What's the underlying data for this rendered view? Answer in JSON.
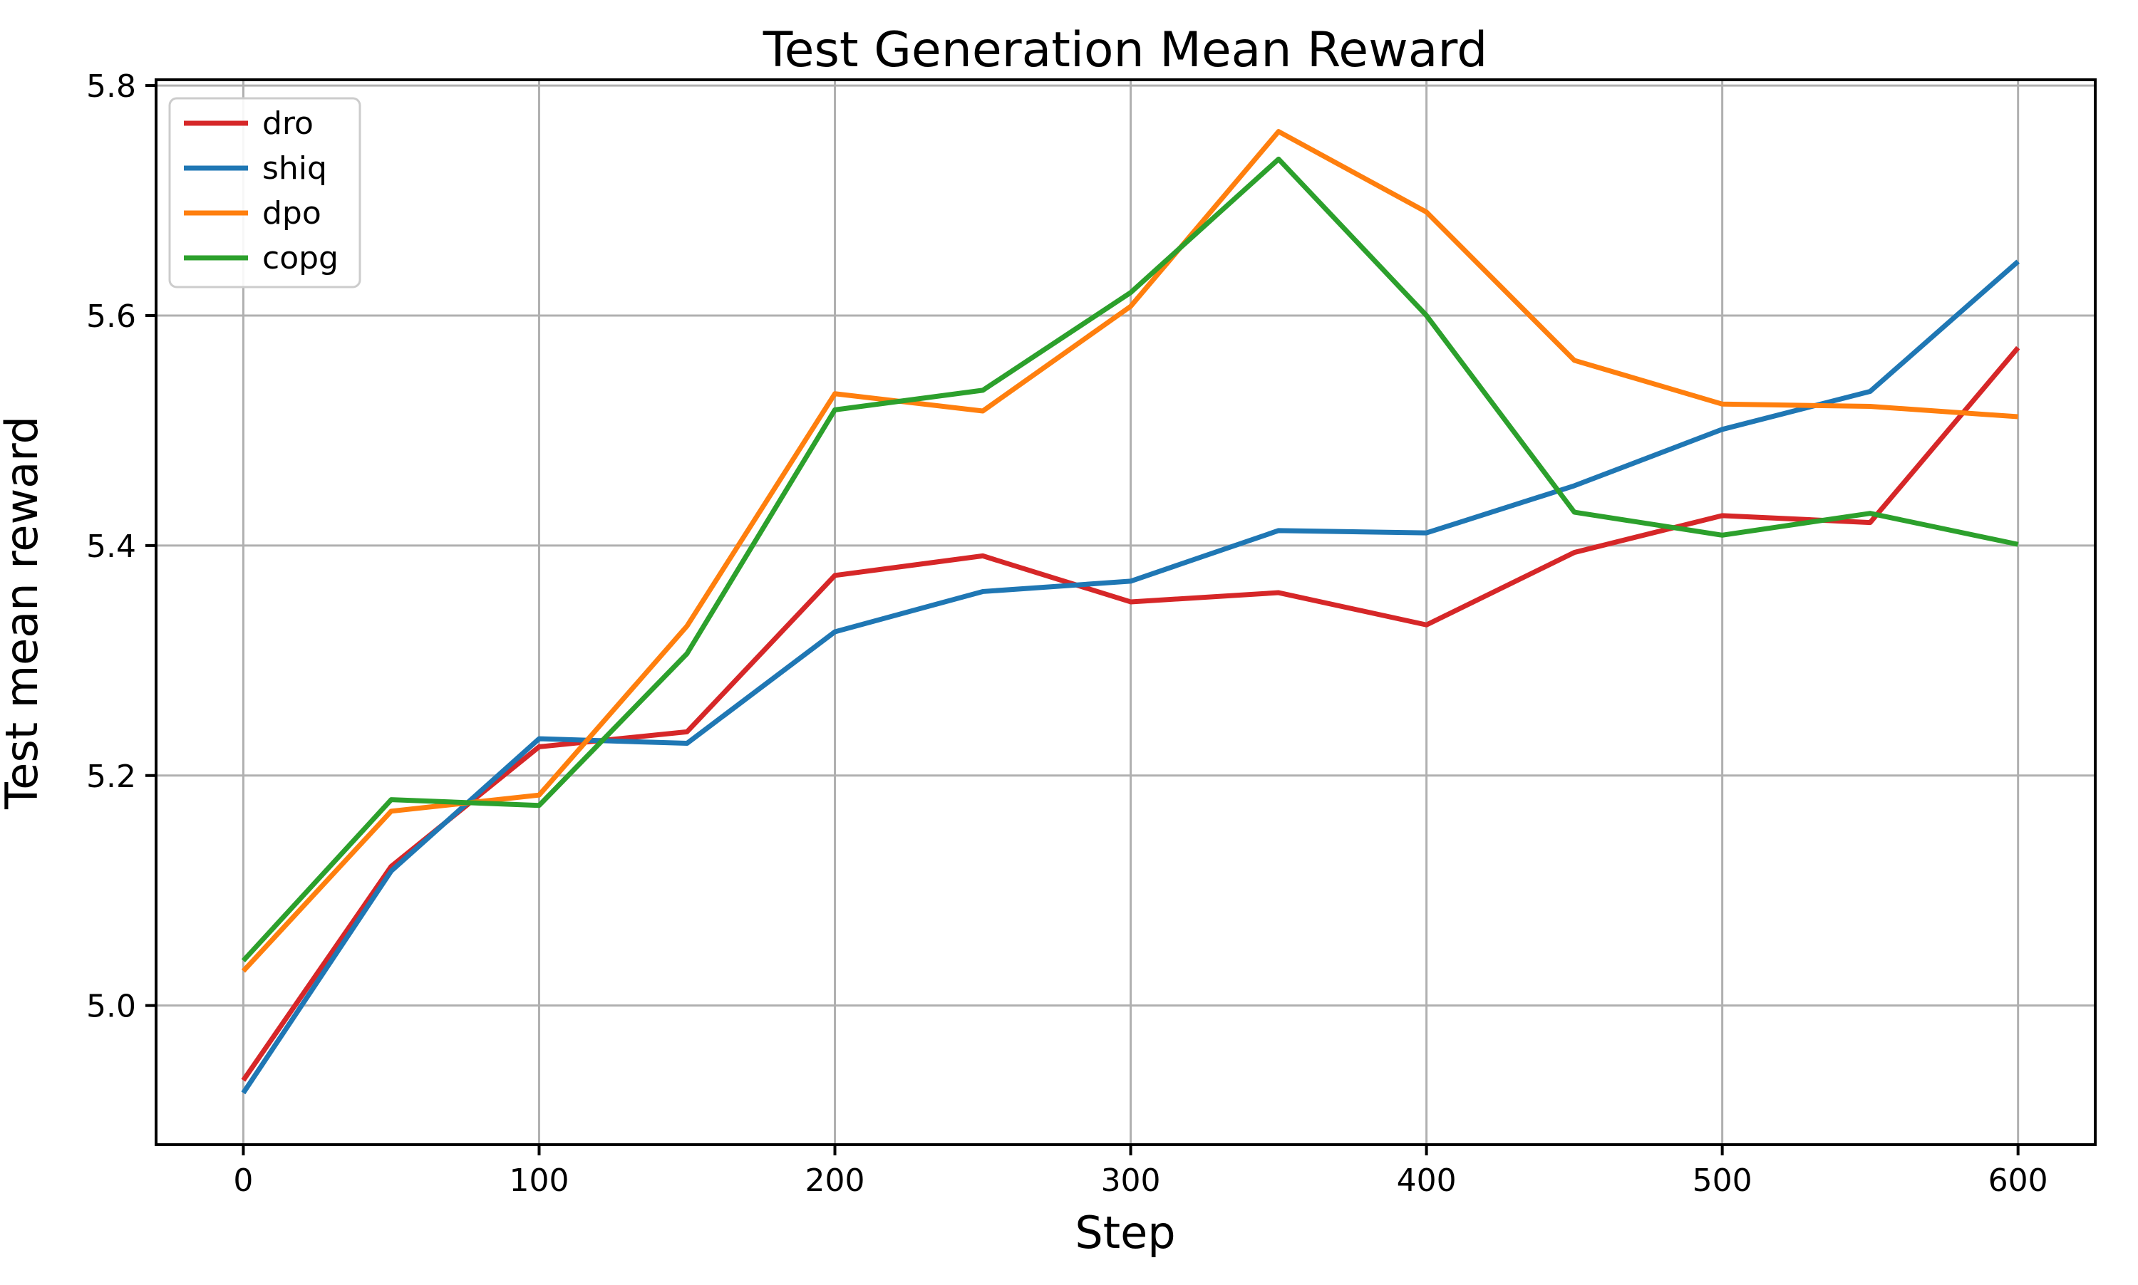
{
  "figure": {
    "background": "#ffffff",
    "plot_background": "#ffffff"
  },
  "chart_data": {
    "type": "line",
    "title": "Test Generation Mean Reward",
    "xlabel": "Step",
    "ylabel": "Test mean reward",
    "x": [
      0,
      50,
      100,
      150,
      200,
      250,
      300,
      350,
      400,
      450,
      500,
      550,
      600
    ],
    "series": [
      {
        "name": "dro",
        "color": "#d62728",
        "values": [
          4.935,
          5.121,
          5.225,
          5.238,
          5.374,
          5.391,
          5.351,
          5.359,
          5.331,
          5.394,
          5.426,
          5.42,
          5.572
        ]
      },
      {
        "name": "shiq",
        "color": "#1f77b4",
        "values": [
          4.924,
          5.117,
          5.232,
          5.228,
          5.325,
          5.36,
          5.369,
          5.413,
          5.411,
          5.452,
          5.501,
          5.534,
          5.647
        ]
      },
      {
        "name": "dpo",
        "color": "#ff7f0e",
        "values": [
          5.03,
          5.169,
          5.183,
          5.33,
          5.532,
          5.517,
          5.608,
          5.76,
          5.69,
          5.561,
          5.523,
          5.521,
          5.512
        ]
      },
      {
        "name": "copg",
        "color": "#2ca02c",
        "values": [
          5.039,
          5.179,
          5.174,
          5.306,
          5.518,
          5.535,
          5.62,
          5.736,
          5.6,
          5.429,
          5.409,
          5.428,
          5.401
        ]
      }
    ],
    "xlim": [
      -29.5,
      626.1
    ],
    "ylim": [
      4.879,
      5.805
    ],
    "xticks": {
      "values": [
        0,
        100,
        200,
        300,
        400,
        500,
        600
      ],
      "labels": [
        "0",
        "100",
        "200",
        "300",
        "400",
        "500",
        "600"
      ]
    },
    "yticks": {
      "values": [
        5.0,
        5.2,
        5.4,
        5.6,
        5.8
      ],
      "labels": [
        "5.0",
        "5.2",
        "5.4",
        "5.6",
        "5.8"
      ]
    },
    "grid": true,
    "grid_color": "#b0b0b0",
    "spine_color": "#000000",
    "legend_position": "upper left",
    "legend_border_color": "#cccccc"
  }
}
